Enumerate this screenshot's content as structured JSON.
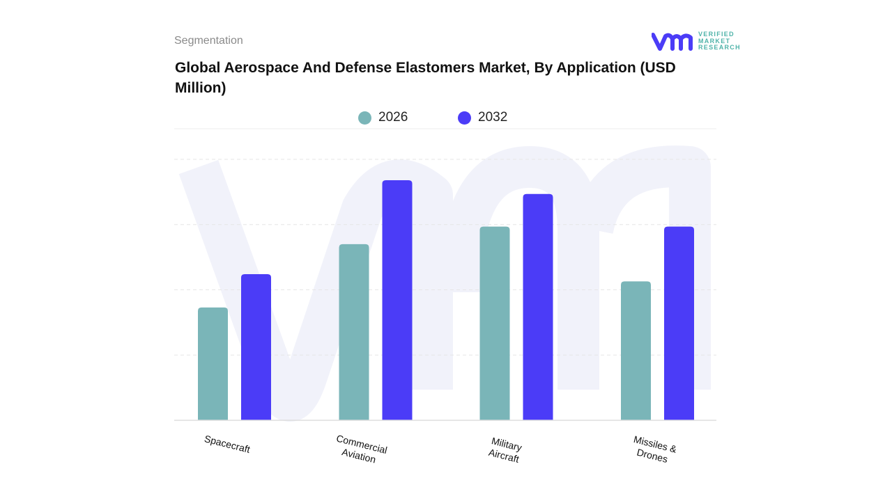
{
  "header": {
    "section_label": "Segmentation",
    "title": "Global Aerospace And Defense Elastomers Market, By Application (USD Million)"
  },
  "logo": {
    "text_lines": [
      "VERIFIED",
      "MARKET",
      "RESEARCH"
    ],
    "mark": "vmr",
    "color_mark": "#4b3cf7",
    "color_text": "#4fb3a9"
  },
  "chart_data": {
    "type": "bar",
    "title": "Global Aerospace And Defense Elastomers Market, By Application (USD Million)",
    "categories": [
      "Spacecraft",
      "Commercial Aviation",
      "Military Aircraft",
      "Missiles & Drones"
    ],
    "series": [
      {
        "name": "2026",
        "color": "#7ab5b8",
        "values": [
          1.73,
          2.7,
          2.97,
          2.13
        ]
      },
      {
        "name": "2032",
        "color": "#4b3cf7",
        "values": [
          2.24,
          3.68,
          3.47,
          2.97
        ]
      }
    ],
    "ylim": [
      0,
      4
    ],
    "y_tick_labels_shown": false,
    "grid": true,
    "legend_position": "top",
    "xlabel": "",
    "ylabel": ""
  }
}
